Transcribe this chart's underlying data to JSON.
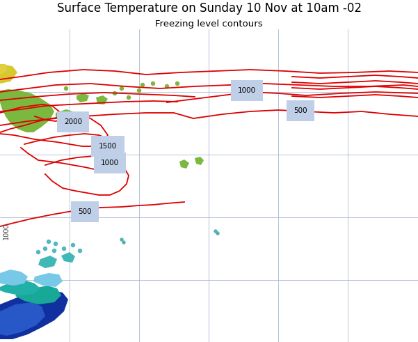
{
  "title": "Surface Temperature on Sunday 10 Nov at 10am -02",
  "subtitle": "Freezing level contours",
  "ocean_color": "#bfcfe8",
  "header_bg": "#ffffff",
  "contour_color": "#dd0000",
  "contour_lw": 1.3,
  "grid_color": "#a8b8d0",
  "grid_lw": 0.6,
  "title_fontsize": 12,
  "subtitle_fontsize": 9.5,
  "label_fontsize": 7.5,
  "land_green": "#7ab840",
  "land_yellow": "#d8c830",
  "land_dark_blue": "#1030a0",
  "land_med_blue": "#2858c8",
  "land_teal": "#18a898",
  "land_light_blue": "#78c8e8",
  "land_ice": "#b8e0f8",
  "figw": 6.01,
  "figh": 4.91,
  "dpi": 100
}
